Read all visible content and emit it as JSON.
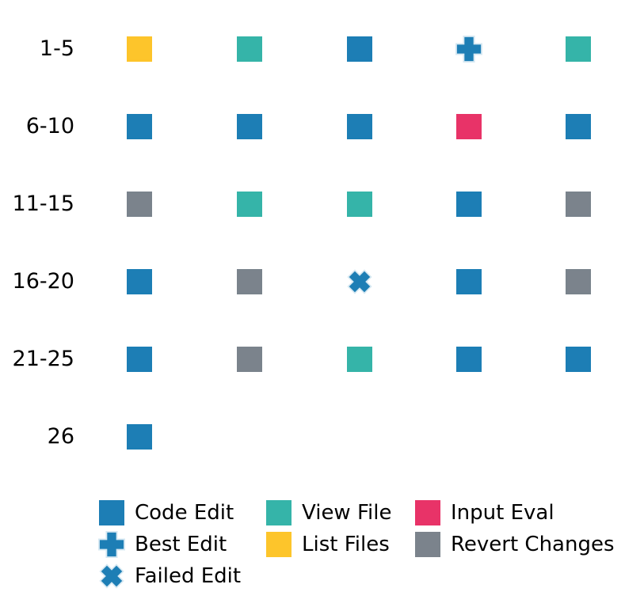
{
  "chart_data": {
    "type": "scatter",
    "title": "",
    "xlabel": "",
    "ylabel": "",
    "description": "Grid of agent actions per turn, grouped in rows of 5 turns; marker shape/color encodes the action type",
    "x_axis": {
      "visible": false,
      "columns_per_row": 5
    },
    "y_axis": {
      "visible_ticks": [
        "1-5",
        "6-10",
        "11-15",
        "16-20",
        "21-25",
        "26"
      ]
    },
    "grid": false,
    "legend_position": "bottom",
    "rows": [
      {
        "label": "1-5",
        "actions": [
          "List Files",
          "View File",
          "Code Edit",
          "Best Edit",
          "View File"
        ]
      },
      {
        "label": "6-10",
        "actions": [
          "Code Edit",
          "Code Edit",
          "Code Edit",
          "Input Eval",
          "Code Edit"
        ]
      },
      {
        "label": "11-15",
        "actions": [
          "Revert Changes",
          "View File",
          "View File",
          "Code Edit",
          "Revert Changes"
        ]
      },
      {
        "label": "16-20",
        "actions": [
          "Code Edit",
          "Revert Changes",
          "Failed Edit",
          "Code Edit",
          "Revert Changes"
        ]
      },
      {
        "label": "21-25",
        "actions": [
          "Code Edit",
          "Revert Changes",
          "View File",
          "Code Edit",
          "Code Edit"
        ]
      },
      {
        "label": "26",
        "actions": [
          "Code Edit",
          null,
          null,
          null,
          null
        ]
      }
    ],
    "markers": {
      "Code Edit": {
        "shape": "square",
        "color": "#1d7eb5"
      },
      "View File": {
        "shape": "square",
        "color": "#35b4a9"
      },
      "Input Eval": {
        "shape": "square",
        "color": "#e83368"
      },
      "Best Edit": {
        "shape": "plus",
        "color": "#1d7eb5"
      },
      "List Files": {
        "shape": "square",
        "color": "#fdc52b"
      },
      "Revert Changes": {
        "shape": "square",
        "color": "#7b838c"
      },
      "Failed Edit": {
        "shape": "x",
        "color": "#1d7eb5"
      }
    },
    "legend": [
      "Code Edit",
      "View File",
      "Input Eval",
      "Best Edit",
      "List Files",
      "Revert Changes",
      "Failed Edit"
    ]
  }
}
